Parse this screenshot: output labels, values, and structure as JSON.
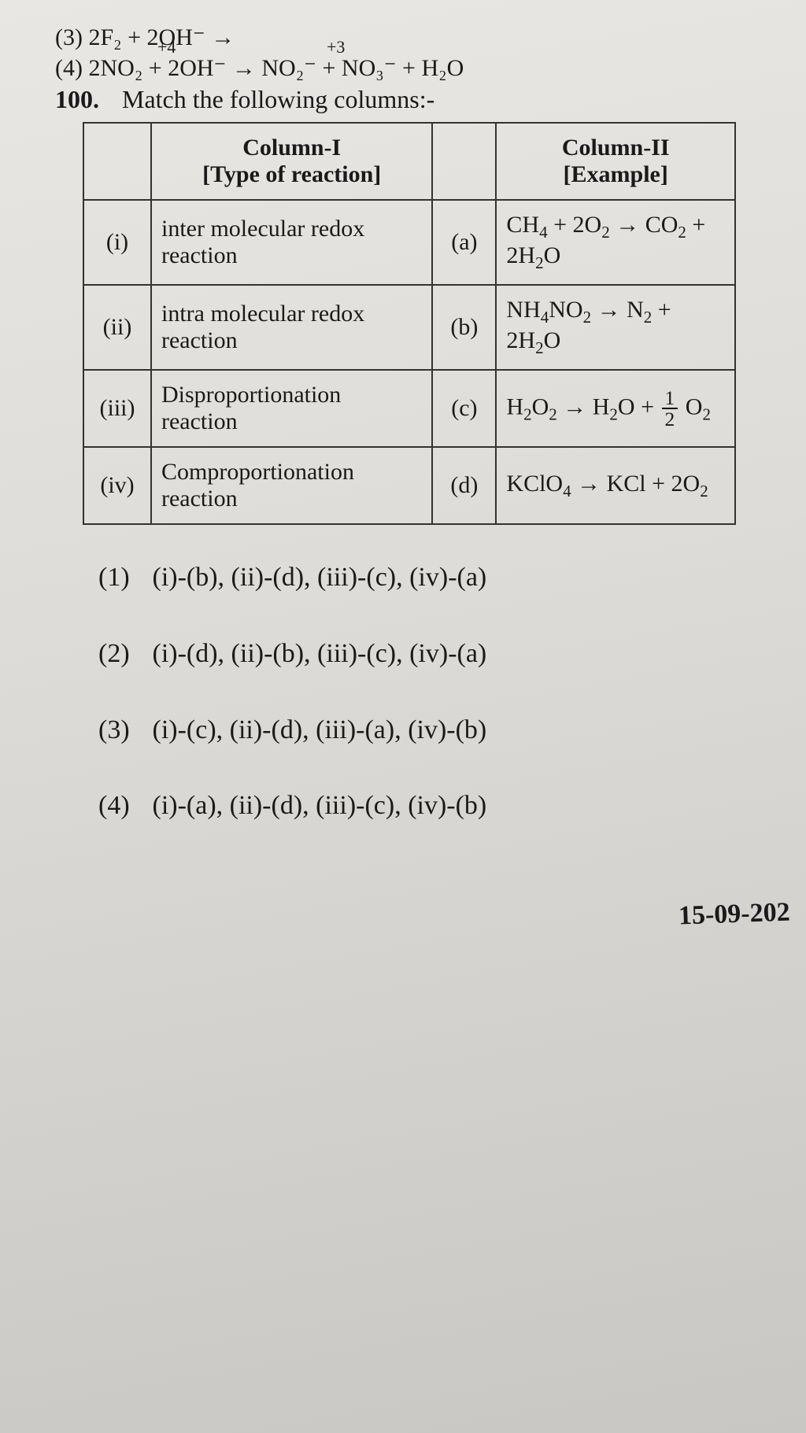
{
  "top": {
    "opt3_num": "(3)",
    "opt3_eq": "2F₂ + 2OH⁻ →",
    "opt4_num": "(4)",
    "opt4_eq": "2NO₂ + 2OH⁻ → NO₂⁻ + NO₃⁻ + H₂O",
    "plus3": "+3",
    "plus14": "+4"
  },
  "q100": {
    "num": "100.",
    "stem": "Match the following columns:-",
    "col1_header_top": "Column-I",
    "col1_header_bot": "[Type of reaction]",
    "col2_header_top": "Column-II",
    "col2_header_bot": "[Example]",
    "rows": [
      {
        "i": "(i)",
        "t": "inter molecular redox reaction",
        "l": "(a)",
        "eq_html": "CH<sub>4</sub> + 2O<sub>2</sub> → CO<sub>2</sub> + 2H<sub>2</sub>O"
      },
      {
        "i": "(ii)",
        "t": "intra molecular redox reaction",
        "l": "(b)",
        "eq_html": "NH<sub>4</sub>NO<sub>2</sub> → N<sub>2</sub> + 2H<sub>2</sub>O"
      },
      {
        "i": "(iii)",
        "t": "Disproportionation reaction",
        "l": "(c)",
        "eq_html": "H<sub>2</sub>O<sub>2</sub> → H<sub>2</sub>O + <span class='frac'><span class='n'>1</span><span class='d'>2</span></span> O<sub>2</sub>"
      },
      {
        "i": "(iv)",
        "t": "Comproportionation reaction",
        "l": "(d)",
        "eq_html": "KClO<sub>4</sub> → KCl + 2O<sub>2</sub>"
      }
    ],
    "options": [
      {
        "n": "(1)",
        "t": "(i)-(b), (ii)-(d), (iii)-(c), (iv)-(a)"
      },
      {
        "n": "(2)",
        "t": "(i)-(d), (ii)-(b), (iii)-(c), (iv)-(a)"
      },
      {
        "n": "(3)",
        "t": "(i)-(c), (ii)-(d), (iii)-(a), (iv)-(b)"
      },
      {
        "n": "(4)",
        "t": "(i)-(a), (ii)-(d), (iii)-(c), (iv)-(b)"
      }
    ]
  },
  "footer_date": "15-09-202",
  "style": {
    "table_border_color": "#333333",
    "page_bg_start": "#e9e7e3",
    "page_bg_end": "#c9c7c3",
    "text_color": "#1a1a1a",
    "heading_fontsize": 32,
    "cell_fontsize": 30,
    "option_fontsize": 34
  }
}
